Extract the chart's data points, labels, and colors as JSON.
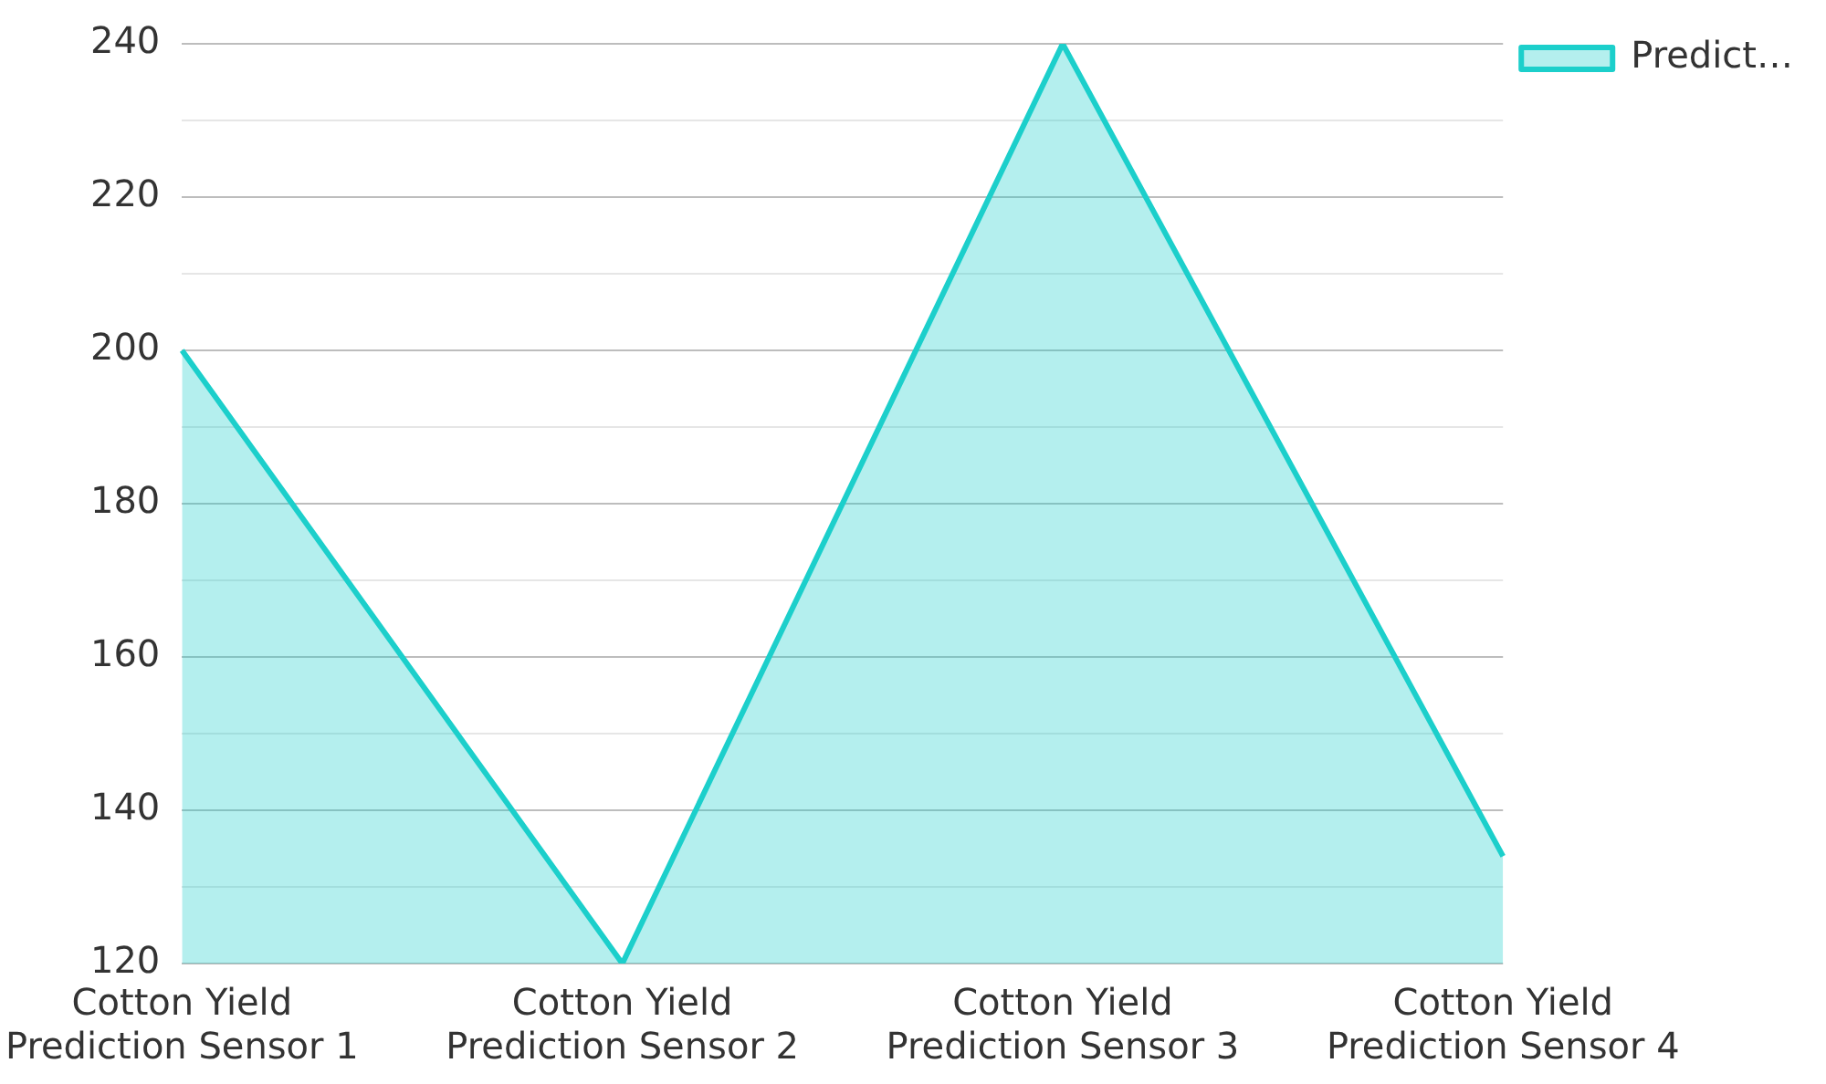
{
  "chart_data": {
    "type": "area",
    "categories": [
      "Cotton Yield Prediction Sensor 1",
      "Cotton Yield Prediction Sensor 2",
      "Cotton Yield Prediction Sensor 3",
      "Cotton Yield Prediction Sensor 4"
    ],
    "series": [
      {
        "name": "Predict…",
        "color": "#1ccfcb",
        "values": [
          200,
          120,
          240,
          134
        ]
      }
    ],
    "ylim": [
      120,
      240
    ],
    "yticks": [
      120,
      {
        "value": 130,
        "label": null
      },
      140,
      {
        "value": 150,
        "label": null
      },
      160,
      {
        "value": 170,
        "label": null
      },
      180,
      {
        "value": 190,
        "label": null
      },
      200,
      {
        "value": 210,
        "label": null
      },
      220,
      {
        "value": 230,
        "label": null
      },
      240
    ],
    "grid": "y",
    "legend": "top right",
    "marker": "none"
  }
}
